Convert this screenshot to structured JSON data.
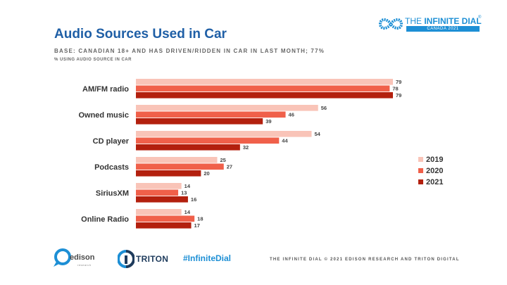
{
  "header": {
    "title": "Audio Sources Used in Car",
    "base": "BASE: CANADIAN 18+ AND HAS DRIVEN/RIDDEN IN CAR IN LAST MONTH; 77%",
    "subtitle": "% USING AUDIO SOURCE IN CAR"
  },
  "logo": {
    "brand_light": "THE ",
    "brand_bold": "INFINITE DIAL",
    "trademark": "®",
    "edition": "CANADA 2021"
  },
  "footer": {
    "edison": "edison",
    "edison_sub": "research",
    "triton": "TRITON",
    "hashtag": "#InfiniteDial",
    "copyright": "THE INFINITE DIAL   © 2021 EDISON RESEARCH AND TRITON DIGITAL"
  },
  "colors": {
    "2019": "#f9c4b8",
    "2020": "#f0604a",
    "2021": "#b3200e",
    "title": "#1f5fa6",
    "accent": "#1d8fd5"
  },
  "chart_data": {
    "type": "bar",
    "orientation": "horizontal",
    "categories": [
      "AM/FM radio",
      "Owned music",
      "CD player",
      "Podcasts",
      "SiriusXM",
      "Online Radio"
    ],
    "series": [
      {
        "name": "2019",
        "values": [
          79,
          56,
          54,
          25,
          14,
          14
        ]
      },
      {
        "name": "2020",
        "values": [
          78,
          46,
          44,
          27,
          13,
          18
        ]
      },
      {
        "name": "2021",
        "values": [
          79,
          39,
          32,
          20,
          16,
          17
        ]
      }
    ],
    "xlim": [
      0,
      100
    ],
    "grid": false,
    "legend_position": "right",
    "data_labels": true
  }
}
